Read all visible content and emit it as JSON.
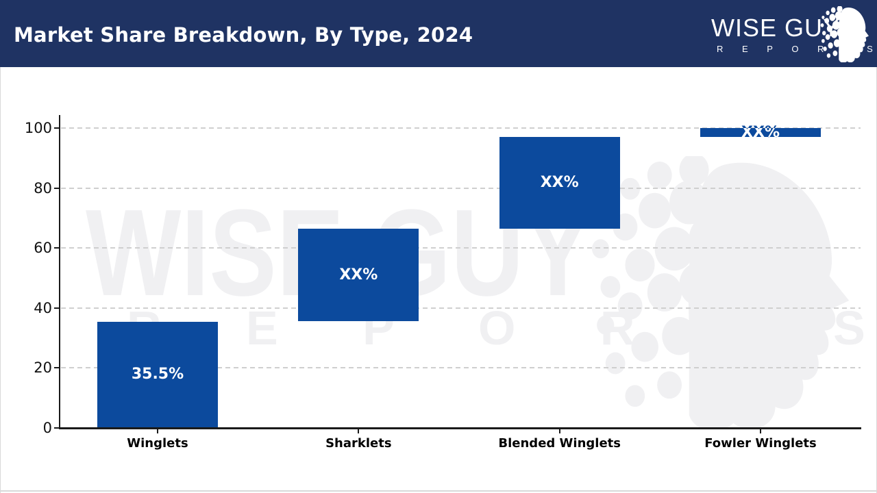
{
  "header": {
    "title": "Market Share Breakdown, By Type, 2024",
    "logo": {
      "name": "WISE GUY",
      "sub": "R E P O R T S"
    }
  },
  "watermark": {
    "name": "WISE GUY",
    "sub": "R E P O R T S"
  },
  "chart_data": {
    "type": "bar",
    "subtype": "waterfall",
    "title": "Market Share Breakdown, By Type, 2024",
    "categories": [
      "Winglets",
      "Sharklets",
      "Blended Winglets",
      "Fowler Winglets"
    ],
    "segments": [
      {
        "category": "Winglets",
        "start": 0,
        "end": 35.5,
        "label": "35.5%"
      },
      {
        "category": "Sharklets",
        "start": 35.5,
        "end": 66.5,
        "label": "XX%"
      },
      {
        "category": "Blended Winglets",
        "start": 66.5,
        "end": 97,
        "label": "XX%"
      },
      {
        "category": "Fowler Winglets",
        "start": 97,
        "end": 100,
        "label": "XX%"
      }
    ],
    "y_ticks": [
      0,
      20,
      40,
      60,
      80,
      100
    ],
    "ylim": [
      0,
      100
    ],
    "xlabel": "",
    "ylabel": "",
    "legend": "none",
    "grid": "horizontal-dashed",
    "bar_color": "#0c4a9d",
    "bar_label_color": "#ffffff"
  },
  "colors": {
    "header_bg": "#1f3363",
    "bar": "#0c4a9d",
    "watermark": "#f0f0f2",
    "gridline": "#cfcfcf",
    "axis": "#1a1a1a"
  }
}
